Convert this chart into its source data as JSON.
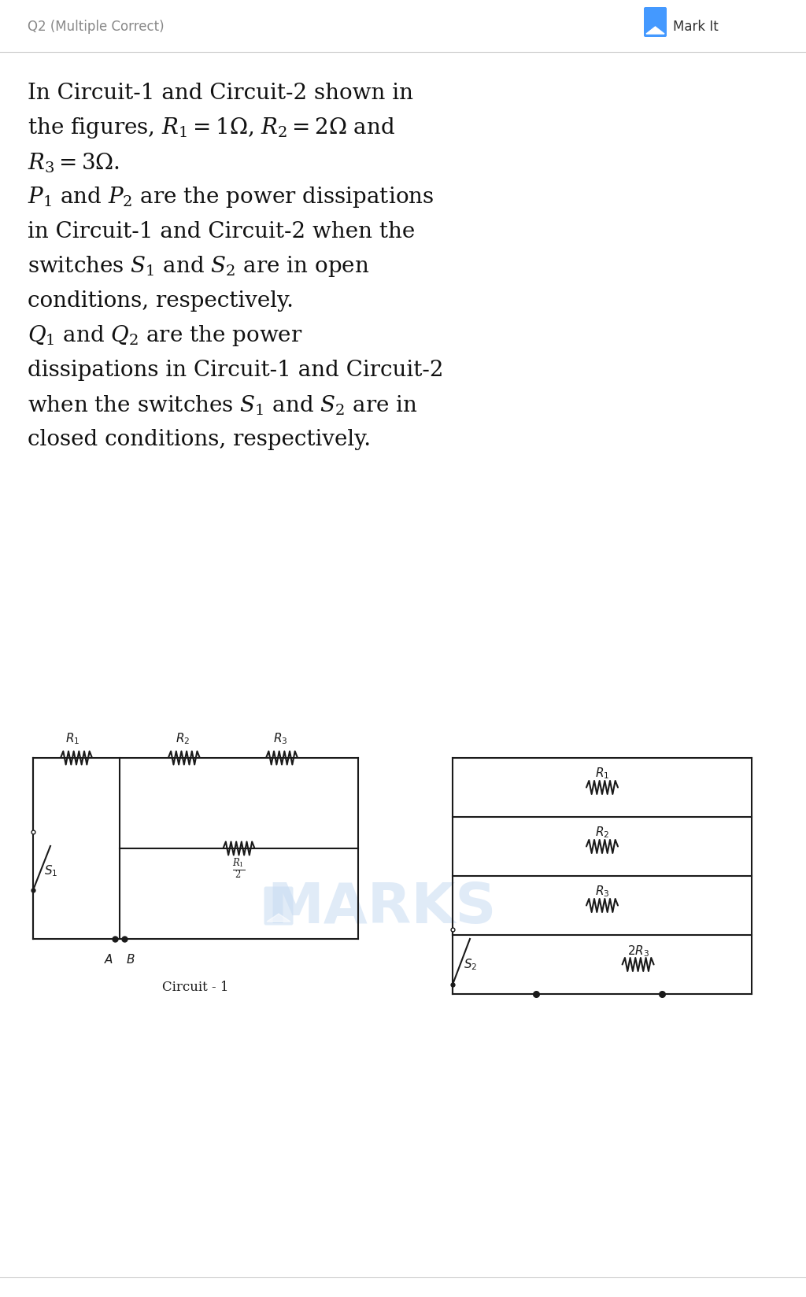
{
  "bg_color": "#ffffff",
  "title_text": "Q2 (Multiple Correct)",
  "title_color": "#888888",
  "mark_it_text": "Mark It",
  "mark_it_color": "#333333",
  "bookmark_color": "#4499ff",
  "watermark_text": "MARKS",
  "watermark_color_rgb": [
    0.78,
    0.86,
    0.95
  ],
  "circuit1_label": "Circuit - 1",
  "color_circ": "#1a1a1a",
  "fig_width": 10.24,
  "fig_height": 16.49,
  "dpi": 100
}
